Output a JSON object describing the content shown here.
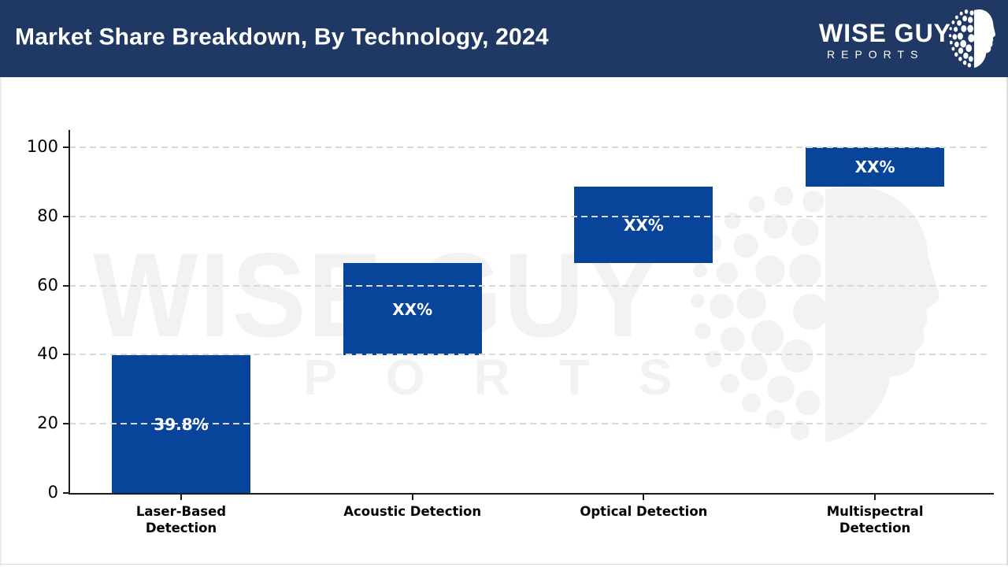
{
  "header": {
    "title": "Market Share Breakdown, By Technology, 2024",
    "logo": {
      "line1": "WISE GUY",
      "line2": "REPORTS"
    }
  },
  "watermark": {
    "line1": "WISE GUY",
    "line2": "PORTS"
  },
  "colors": {
    "header_bg": "#203864",
    "bar": "#09449b",
    "grid": "#d9d9d9",
    "axis": "#1a1a1a",
    "watermark": "#f2f2f2",
    "value_label": "#ffffff"
  },
  "chart_data": {
    "type": "bar",
    "subtype": "floating-waterfall",
    "title": "Market Share Breakdown, By Technology, 2024",
    "categories": [
      "Laser-Based Detection",
      "Acoustic Detection",
      "Optical Detection",
      "Multispectral Detection"
    ],
    "category_label_lines": [
      [
        "Laser-Based",
        "Detection"
      ],
      [
        "Acoustic Detection"
      ],
      [
        "Optical Detection"
      ],
      [
        "Multispectral",
        "Detection"
      ]
    ],
    "series": [
      {
        "name": "Market Share",
        "segments": [
          {
            "category": "Laser-Based Detection",
            "start": 0,
            "end": 39.8,
            "label": "39.8%"
          },
          {
            "category": "Acoustic Detection",
            "start": 39.8,
            "end": 66.5,
            "label": "XX%"
          },
          {
            "category": "Optical Detection",
            "start": 66.5,
            "end": 88.5,
            "label": "XX%"
          },
          {
            "category": "Multispectral Detection",
            "start": 88.5,
            "end": 100,
            "label": "XX%"
          }
        ]
      }
    ],
    "xlabel": "",
    "ylabel": "",
    "yticks": [
      0,
      20,
      40,
      60,
      80,
      100
    ],
    "ylim": [
      0,
      105
    ],
    "grid": "horizontal-dashed",
    "legend": "none"
  }
}
